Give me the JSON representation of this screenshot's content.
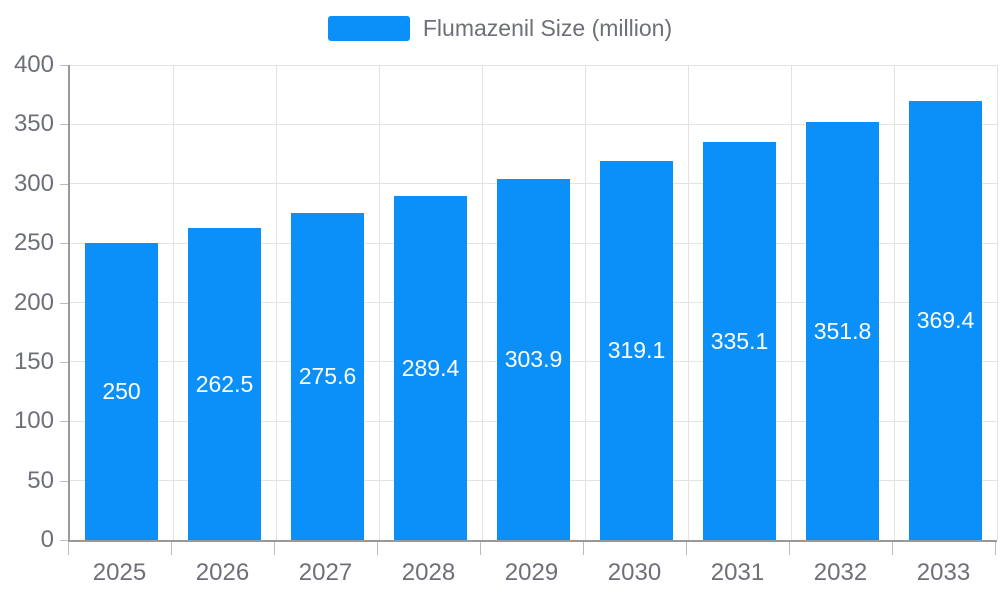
{
  "legend": {
    "label": "Flumazenil Size (million)"
  },
  "chart_data": {
    "type": "bar",
    "title": "Flumazenil Size (million)",
    "categories": [
      "2025",
      "2026",
      "2027",
      "2028",
      "2029",
      "2030",
      "2031",
      "2032",
      "2033"
    ],
    "series": [
      {
        "name": "Flumazenil Size (million)",
        "values": [
          250,
          262.5,
          275.6,
          289.4,
          303.9,
          319.1,
          335.1,
          351.8,
          369.4
        ]
      }
    ],
    "bar_labels": [
      "250",
      "262.5",
      "275.6",
      "289.4",
      "303.9",
      "319.1",
      "335.1",
      "351.8",
      "369.4"
    ],
    "xlabel": "",
    "ylabel": "",
    "ylim": [
      0,
      400
    ],
    "y_ticks": [
      0,
      50,
      100,
      150,
      200,
      250,
      300,
      350,
      400
    ],
    "grid": true,
    "legend_position": "top-center"
  },
  "colors": {
    "bar": "#0b90fa",
    "bar_label": "#ffffff",
    "axis_label": "#6e7079",
    "axis_line": "#999999",
    "gridline": "#e3e3e3",
    "tick": "#bbbbbb"
  }
}
